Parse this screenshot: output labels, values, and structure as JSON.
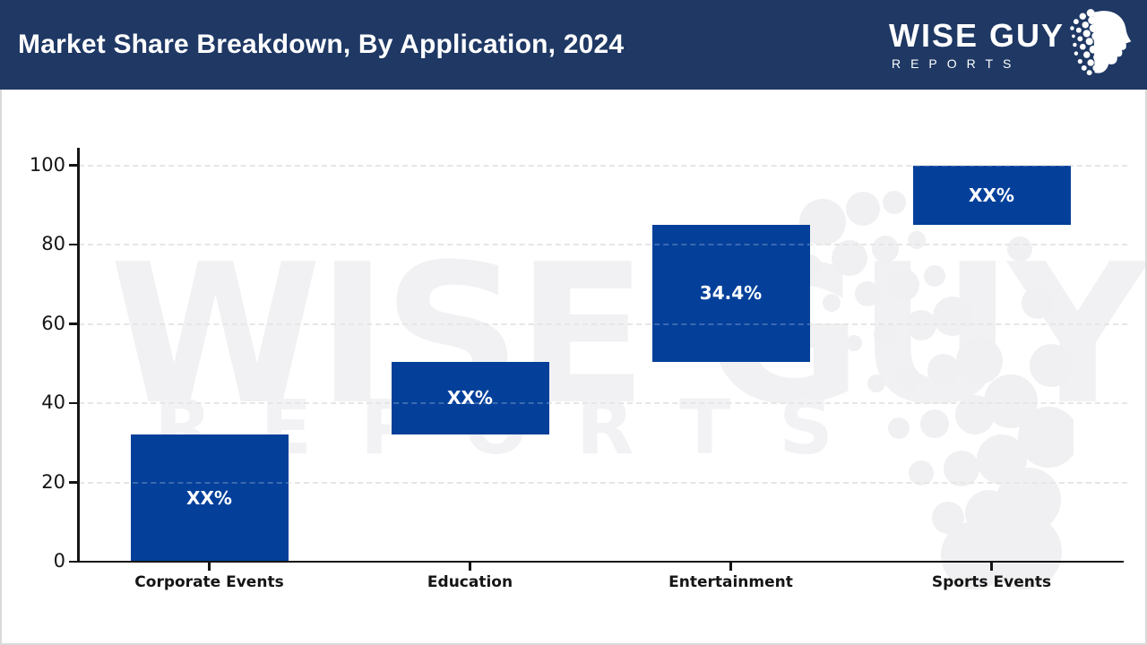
{
  "header": {
    "title": "Market Share Breakdown, By Application, 2024",
    "bg_color": "#1f3864",
    "logo": {
      "wordmark": "WISE GUY",
      "subtext": "REPORTS"
    }
  },
  "watermark": {
    "line1": "WISE GUY",
    "line2": "REPORTS"
  },
  "chart_data": {
    "type": "bar",
    "variant": "floating-segment (waterfall of shares summing to 100%)",
    "title": "Market Share Breakdown, By Application, 2024",
    "categories": [
      "Corporate Events",
      "Education",
      "Entertainment",
      "Sports Events"
    ],
    "segments": [
      {
        "category": "Corporate Events",
        "start": 0,
        "end": 32.0,
        "value": 32.0,
        "label": "XX%"
      },
      {
        "category": "Education",
        "start": 32.0,
        "end": 50.5,
        "value": 18.5,
        "label": "XX%"
      },
      {
        "category": "Entertainment",
        "start": 50.5,
        "end": 84.9,
        "value": 34.4,
        "label": "34.4%"
      },
      {
        "category": "Sports Events",
        "start": 84.9,
        "end": 100.0,
        "value": 15.1,
        "label": "XX%"
      }
    ],
    "xlabel": "",
    "ylabel": "",
    "ylim": [
      0,
      100
    ],
    "yticks": [
      0,
      20,
      40,
      60,
      80,
      100
    ],
    "grid": "horizontal dashed",
    "legend": "none",
    "bar_color": "#04409a",
    "bar_label_color": "#ffffff"
  }
}
